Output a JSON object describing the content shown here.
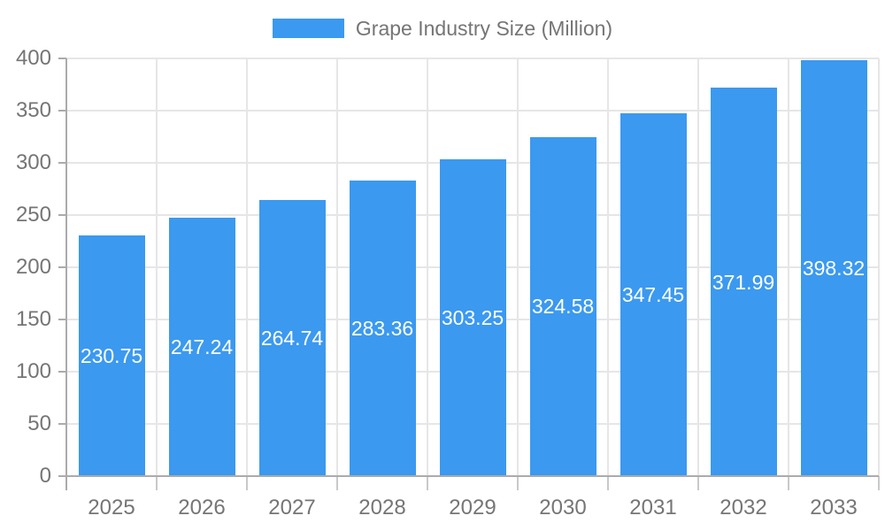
{
  "chart_data": {
    "type": "bar",
    "title": "Grape Industry Size (Million)",
    "legend": {
      "label": "Grape Industry Size (Million)",
      "position": "top-center"
    },
    "categories": [
      "2025",
      "2026",
      "2027",
      "2028",
      "2029",
      "2030",
      "2031",
      "2032",
      "2033"
    ],
    "series": [
      {
        "name": "Grape Industry Size (Million)",
        "values": [
          230.75,
          247.24,
          264.74,
          283.36,
          303.25,
          324.58,
          347.45,
          371.99,
          398.32
        ]
      }
    ],
    "value_labels": [
      "230.75",
      "247.24",
      "264.74",
      "283.36",
      "303.25",
      "324.58",
      "347.45",
      "371.99",
      "398.32"
    ],
    "xlabel": "",
    "ylabel": "",
    "ylim": [
      0,
      400
    ],
    "ytick_step": 50,
    "yticks": [
      "0",
      "50",
      "100",
      "150",
      "200",
      "250",
      "300",
      "350",
      "400"
    ],
    "grid": true,
    "colors": {
      "bar": "#3B99F0",
      "grid": "#E6E6E6",
      "axis": "#ABABAB",
      "tick": "#C9C9C9",
      "label": "#757575",
      "value_label": "#FFFFFF",
      "background": "#FFFFFF"
    }
  }
}
